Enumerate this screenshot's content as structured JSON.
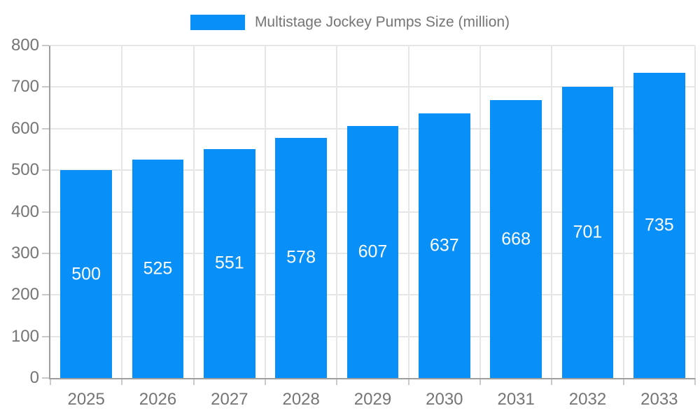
{
  "legend": {
    "label": "Multistage Jockey Pumps Size (million)",
    "swatch_color": "#0990f8"
  },
  "chart_data": {
    "type": "bar",
    "title": "Multistage Jockey Pumps Size (million)",
    "categories": [
      "2025",
      "2026",
      "2027",
      "2028",
      "2029",
      "2030",
      "2031",
      "2032",
      "2033"
    ],
    "values": [
      500,
      525,
      551,
      578,
      607,
      637,
      668,
      701,
      735
    ],
    "value_labels": [
      "500",
      "525",
      "551",
      "578",
      "607",
      "637",
      "668",
      "701",
      "735"
    ],
    "xlabel": "",
    "ylabel": "",
    "ylim": [
      0,
      800
    ],
    "yticks": [
      0,
      100,
      200,
      300,
      400,
      500,
      600,
      700,
      800
    ],
    "grid": true,
    "legend_position": "top",
    "bar_color": "#0990f8",
    "value_label_color": "#ffffff"
  },
  "colors": {
    "background": "#ffffff",
    "axis": "#9e9e9e",
    "grid": "#e6e6e6",
    "tick": "#c9c9c9",
    "axis_label": "#757575"
  }
}
